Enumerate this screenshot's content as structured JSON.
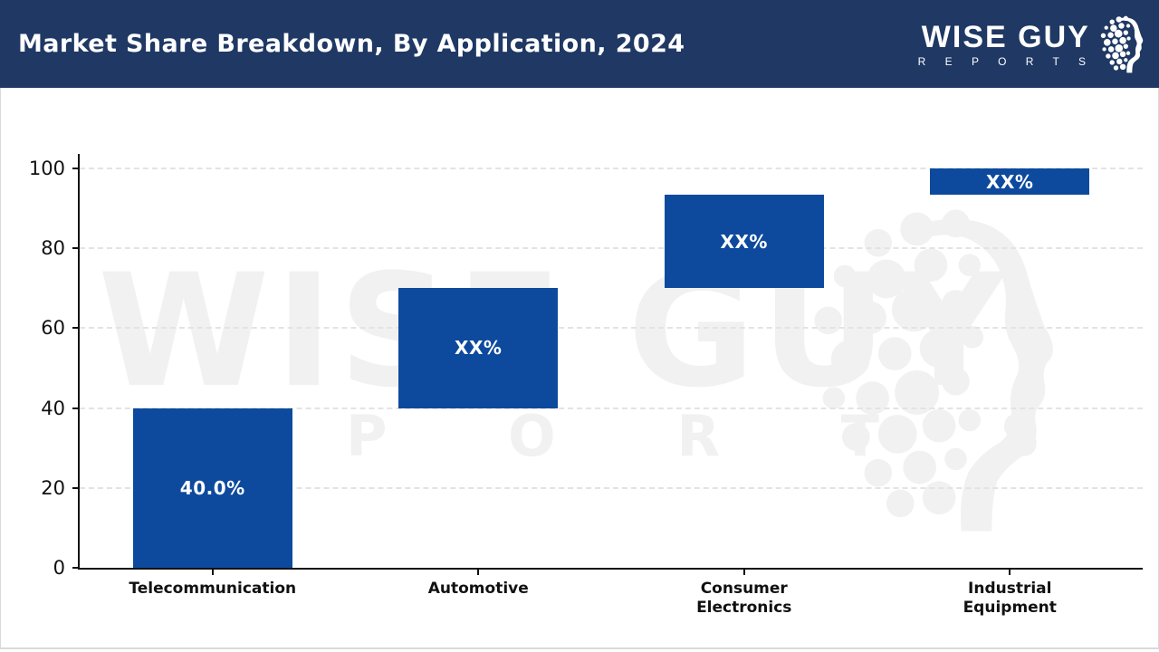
{
  "header": {
    "title": "Market Share Breakdown, By Application, 2024",
    "logo": {
      "wordmark": "WISE GUY",
      "subtext": "R E P O R T S"
    }
  },
  "watermark": {
    "wordmark": "WISE GUY",
    "subtext": "P O R T S"
  },
  "chart_data": {
    "type": "bar",
    "subtype": "waterfall",
    "title": "Market Share Breakdown, By Application, 2024",
    "categories": [
      "Telecommunication",
      "Automotive",
      "Consumer\nElectronics",
      "Industrial\nEquipment"
    ],
    "segments": [
      {
        "category": "Telecommunication",
        "start": 0,
        "end": 40,
        "label": "40.0%"
      },
      {
        "category": "Automotive",
        "start": 40,
        "end": 70,
        "label": "XX%"
      },
      {
        "category": "Consumer\nElectronics",
        "start": 70,
        "end": 93.4,
        "label": "XX%"
      },
      {
        "category": "Industrial\nEquipment",
        "start": 93.4,
        "end": 100,
        "label": "XX%"
      }
    ],
    "values_pct": [
      40.0,
      30.0,
      23.4,
      6.6
    ],
    "xlabel": "",
    "ylabel": "",
    "ylim": [
      0,
      100
    ],
    "yticks": [
      0,
      20,
      40,
      60,
      80,
      100
    ],
    "grid": "horizontal dashed",
    "legend": "none",
    "bar_color": "#0d4a9e"
  },
  "colors": {
    "header_bg": "#1f3864",
    "bar": "#0d4a9e",
    "bar_label": "#ffffff",
    "axis": "#111111",
    "gridline": "#e3e3e3",
    "watermark": "#f1f1f1",
    "background": "#ffffff"
  }
}
